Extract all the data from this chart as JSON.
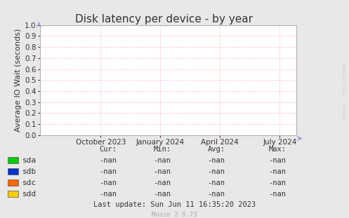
{
  "title": "Disk latency per device - by year",
  "ylabel": "Average IO Wait (seconds)",
  "ylim": [
    0.0,
    1.0
  ],
  "yticks": [
    0.0,
    0.1,
    0.2,
    0.3,
    0.4,
    0.5,
    0.6,
    0.7,
    0.8,
    0.9,
    1.0
  ],
  "xtick_labels": [
    "October 2023",
    "January 2024",
    "April 2024",
    "July 2024"
  ],
  "xtick_positions": [
    0.236,
    0.468,
    0.701,
    0.934
  ],
  "bg_color": "#e8e8e8",
  "plot_bg_color": "#ffffff",
  "grid_color": "#ffaaaa",
  "border_color": "#aaaaaa",
  "legend_entries": [
    {
      "label": "sda",
      "color": "#00cc00"
    },
    {
      "label": "sdb",
      "color": "#0033cc"
    },
    {
      "label": "sdc",
      "color": "#ff6600"
    },
    {
      "label": "sdd",
      "color": "#ffcc00"
    }
  ],
  "table_headers": [
    "Cur:",
    "Min:",
    "Avg:",
    "Max:"
  ],
  "table_value": "-nan",
  "last_update": "Last update: Sun Jun 11 16:35:20 2023",
  "munin_version": "Munin 2.0.73",
  "watermark": "RRDTOOL / TOBI OETIKER",
  "arrow_color": "#9999dd",
  "title_fontsize": 11,
  "axis_label_fontsize": 8,
  "tick_fontsize": 7.5,
  "legend_fontsize": 8,
  "table_fontsize": 7.5
}
